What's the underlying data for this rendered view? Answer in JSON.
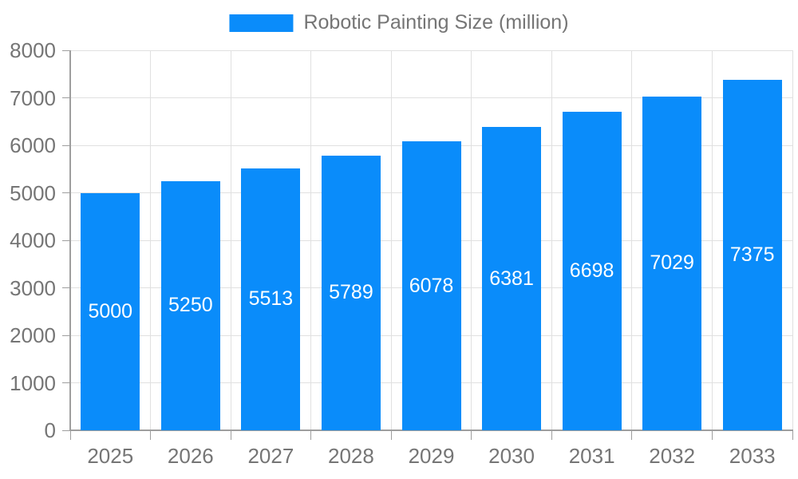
{
  "legend": {
    "label": "Robotic Painting Size (million)"
  },
  "chart_data": {
    "type": "bar",
    "title": "Robotic Painting Size (million)",
    "series_name": "Robotic Painting Size (million)",
    "categories": [
      "2025",
      "2026",
      "2027",
      "2028",
      "2029",
      "2030",
      "2031",
      "2032",
      "2033"
    ],
    "values": [
      5000,
      5250,
      5513,
      5789,
      6078,
      6381,
      6698,
      7029,
      7375
    ],
    "xlabel": "",
    "ylabel": "",
    "ylim": [
      0,
      8000
    ],
    "yticks": [
      0,
      1000,
      2000,
      3000,
      4000,
      5000,
      6000,
      7000,
      8000
    ],
    "legend_position": "top",
    "grid": true,
    "value_labels_position": "inside-center",
    "bar_color": "#0a8cfa",
    "bar_label_color": "#ffffff",
    "axis_text_color": "#757575",
    "gridline_color": "#e0e0e0",
    "axis_line_color": "#9e9e9e",
    "background": "#ffffff"
  }
}
